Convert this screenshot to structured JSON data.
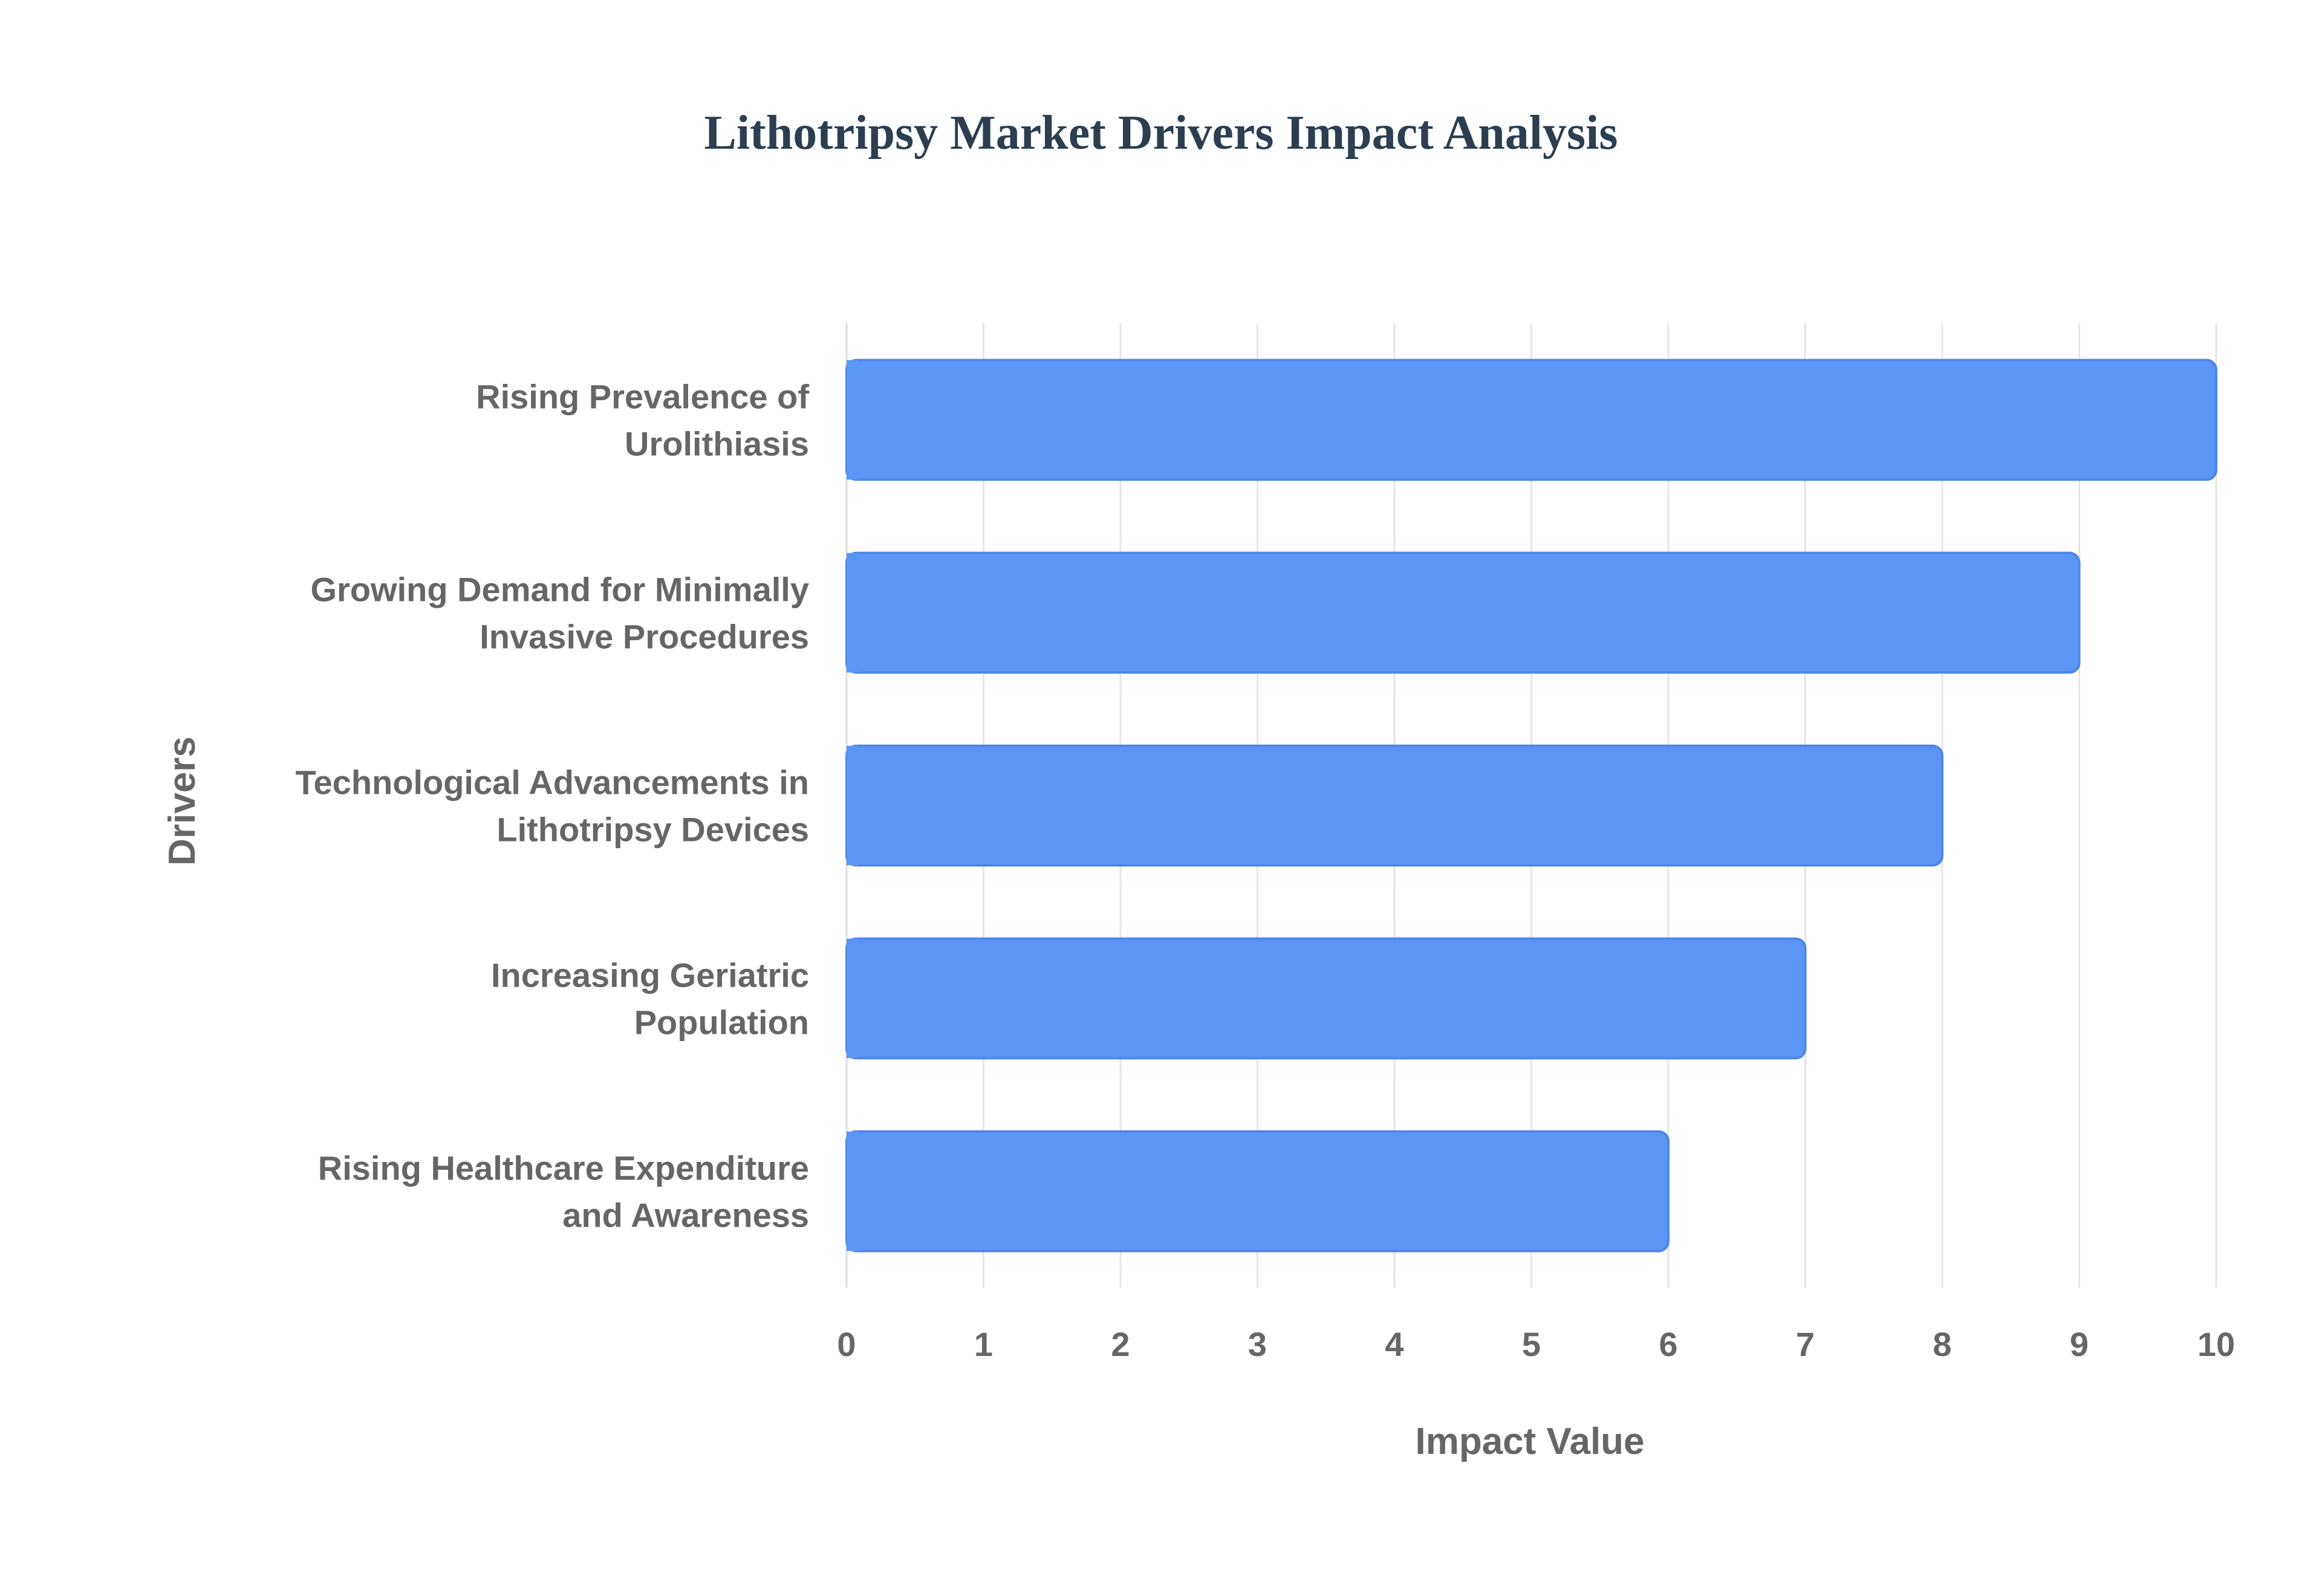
{
  "chart_data": {
    "type": "bar",
    "orientation": "horizontal",
    "title": "Lithotripsy Market Drivers Impact Analysis",
    "xlabel": "Impact Value",
    "ylabel": "Drivers",
    "xlim": [
      0,
      10
    ],
    "x_ticks": [
      0,
      1,
      2,
      3,
      4,
      5,
      6,
      7,
      8,
      9,
      10
    ],
    "grid": true,
    "categories": [
      [
        "Rising Prevalence of",
        "Urolithiasis"
      ],
      [
        "Growing Demand for Minimally",
        "Invasive Procedures"
      ],
      [
        "Technological Advancements in",
        "Lithotripsy Devices"
      ],
      [
        "Increasing Geriatric",
        "Population"
      ],
      [
        "Rising Healthcare Expenditure",
        "and Awareness"
      ]
    ],
    "values": [
      10,
      9,
      8,
      7,
      6
    ],
    "colors": {
      "bar_fill": "#5b95f5",
      "bar_stroke": "#4f86e8",
      "title": "#2c3e50",
      "label": "#666666",
      "grid": "#e6e6e6"
    }
  }
}
